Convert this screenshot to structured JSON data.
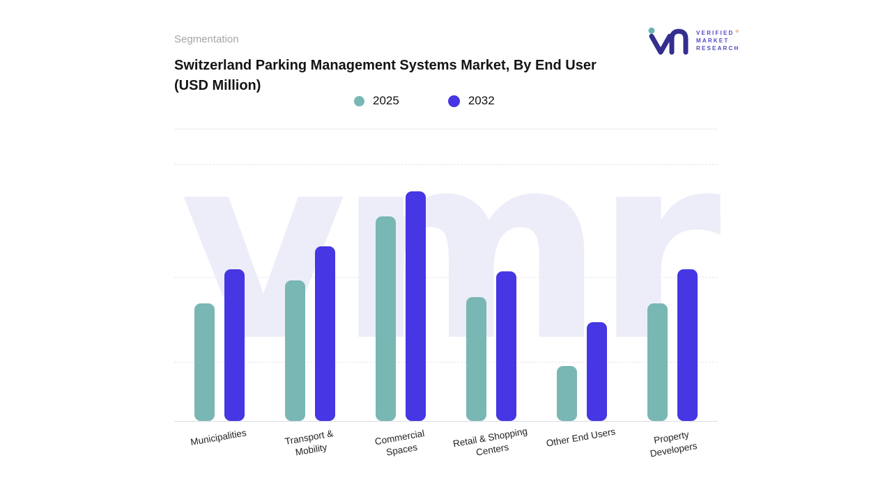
{
  "header": {
    "eyebrow": "Segmentation",
    "title": "Switzerland Parking Management Systems Market, By End User (USD Million)"
  },
  "logo": {
    "lines": [
      "VERIFIED",
      "MARKET",
      "RESEARCH"
    ],
    "registered": "®",
    "mark_color": "#332e8f",
    "dot_color": "#6ab5b2",
    "text_color": "#4f48c4"
  },
  "watermark": "vmr",
  "chart_data": {
    "type": "bar",
    "title": "Switzerland Parking Management Systems Market, By End User (USD Million)",
    "ylabel": "USD Million",
    "categories": [
      "Municipalities",
      "Transport & Mobility",
      "Commercial Spaces",
      "Retail & Shopping Centers",
      "Other End Users",
      "Property Developers"
    ],
    "category_lines": [
      [
        "Municipalities"
      ],
      [
        "Transport &",
        "Mobility"
      ],
      [
        "Commercial",
        "Spaces"
      ],
      [
        "Retail & Shopping",
        "Centers"
      ],
      [
        "Other End Users"
      ],
      [
        "Property",
        "Developers"
      ]
    ],
    "series": [
      {
        "name": "2025",
        "color": "#79b7b4",
        "values": [
          51,
          61,
          89,
          54,
          24,
          51
        ]
      },
      {
        "name": "2032",
        "color": "#4636e3",
        "values": [
          66,
          76,
          100,
          65,
          43,
          66
        ]
      }
    ],
    "ylim": [
      0,
      115
    ],
    "y_axis_labels_visible": false,
    "values_estimated_relative": true,
    "grid": "dashed-horizontal",
    "legend_position": "top-center",
    "background_watermark": "vmr"
  }
}
